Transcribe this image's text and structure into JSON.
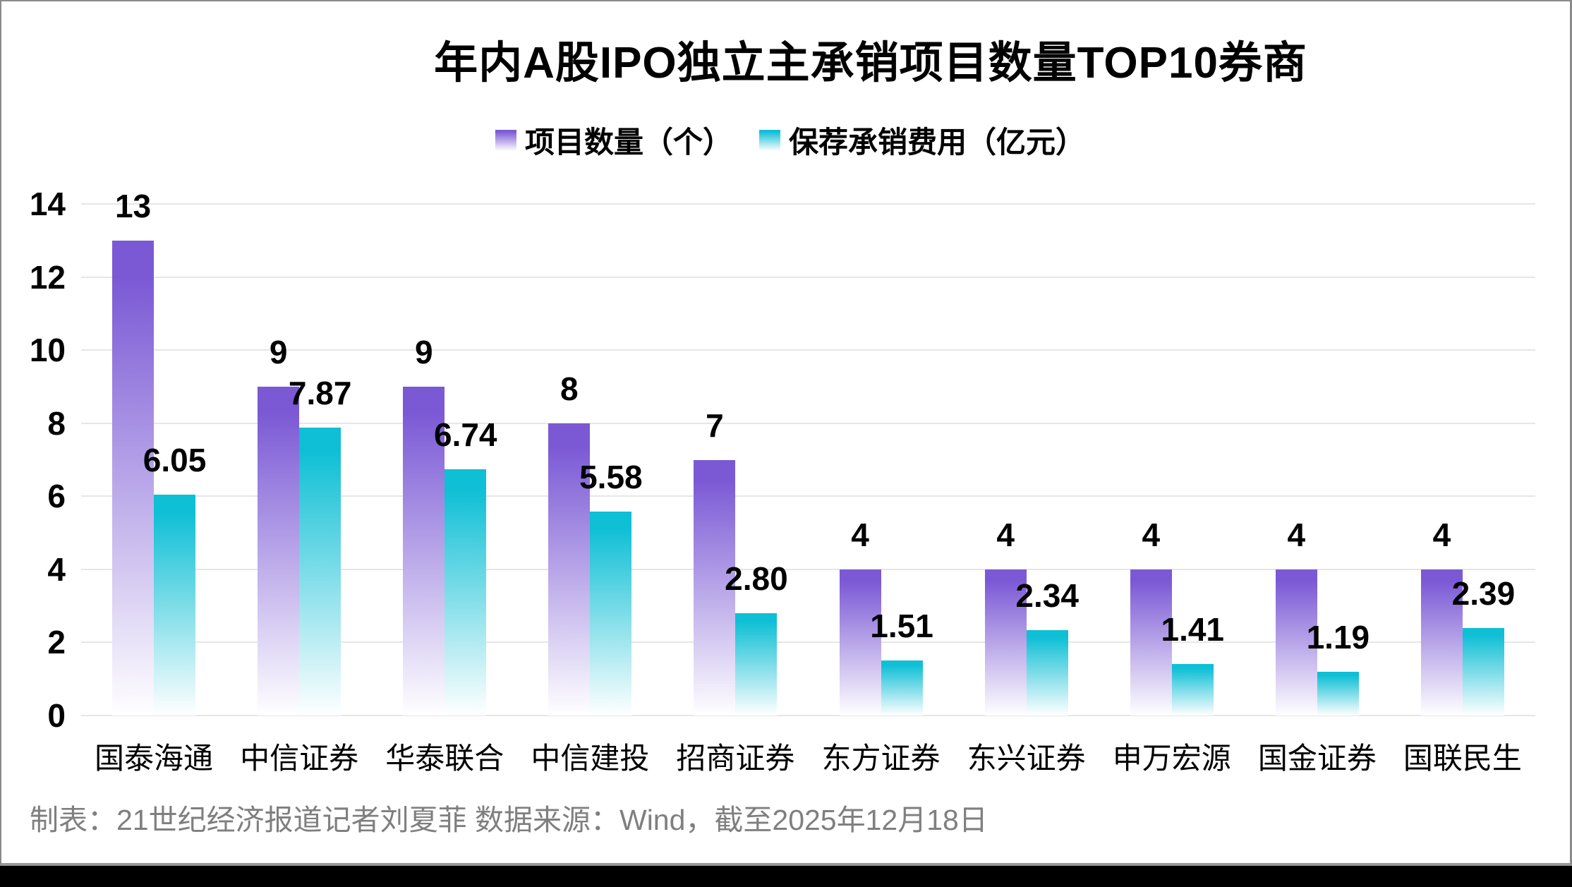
{
  "chart_data": {
    "type": "bar",
    "title": "年内A股IPO独立主承销项目数量TOP10券商",
    "categories": [
      "国泰海通",
      "中信证券",
      "华泰联合",
      "中信建投",
      "招商证券",
      "东方证券",
      "东兴证券",
      "申万宏源",
      "国金证券",
      "国联民生"
    ],
    "series": [
      {
        "name": "项目数量（个）",
        "color": "#7b59d5",
        "values": [
          13,
          9,
          9,
          8,
          7,
          4,
          4,
          4,
          4,
          4
        ],
        "labels": [
          "13",
          "9",
          "9",
          "8",
          "7",
          "4",
          "4",
          "4",
          "4",
          "4"
        ]
      },
      {
        "name": "保荐承销费用（亿元）",
        "color": "#0ebfd5",
        "values": [
          6.05,
          7.87,
          6.74,
          5.58,
          2.8,
          1.51,
          2.34,
          1.41,
          1.19,
          2.39
        ],
        "labels": [
          "6.05",
          "7.87",
          "6.74",
          "5.58",
          "2.80",
          "1.51",
          "2.34",
          "1.41",
          "1.19",
          "2.39"
        ]
      }
    ],
    "ylim": [
      0,
      14
    ],
    "ytick_step": 2,
    "yticks": [
      "0",
      "2",
      "4",
      "6",
      "8",
      "10",
      "12",
      "14"
    ],
    "grid": true,
    "legend_position": "top",
    "gridline_color": "#e6e6e6",
    "source_note": "制表：21世纪经济报道记者刘夏菲 数据来源：Wind，截至2025年12月18日"
  }
}
